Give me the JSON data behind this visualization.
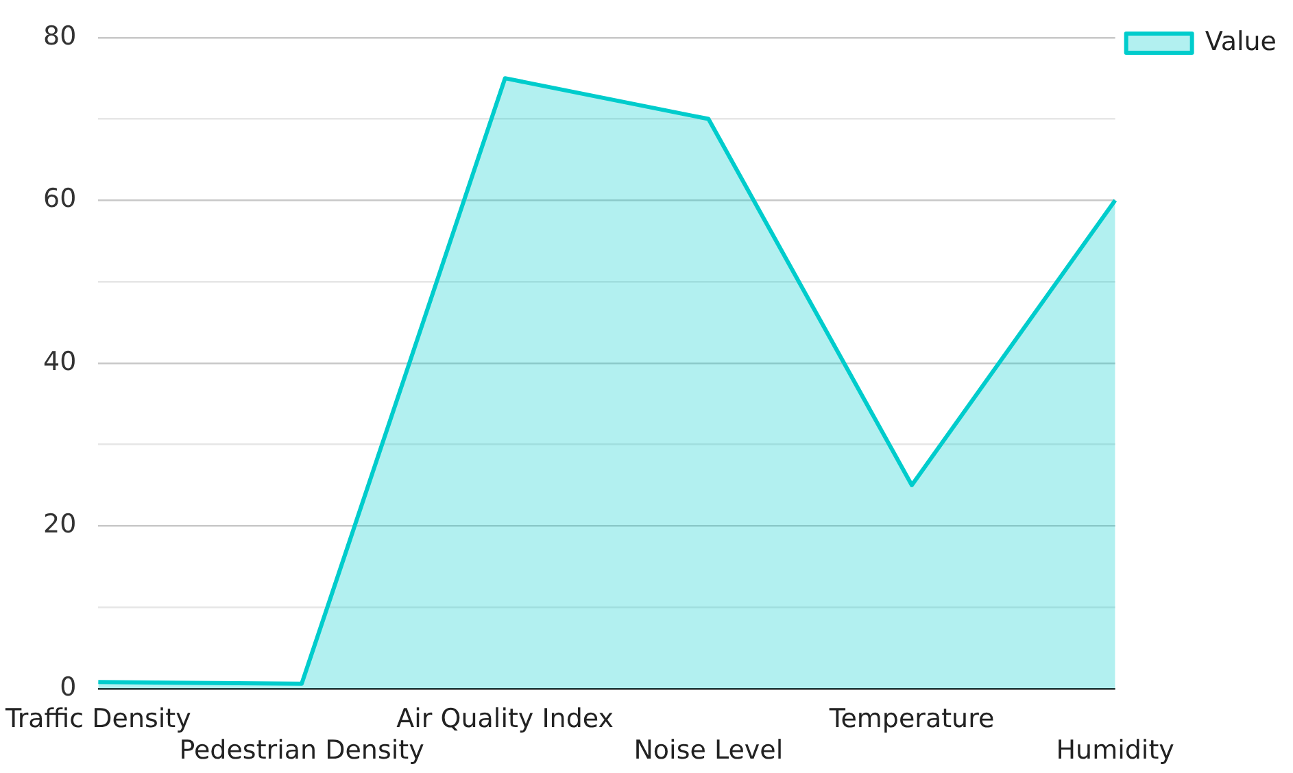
{
  "chart_data": {
    "type": "area",
    "categories": [
      "Traffic Density",
      "Pedestrian Density",
      "Air Quality Index",
      "Noise Level",
      "Temperature",
      "Humidity"
    ],
    "series": [
      {
        "name": "Value",
        "color": "#00cccc",
        "values": [
          0.8,
          0.6,
          75,
          70,
          25,
          60
        ]
      }
    ],
    "ylim": [
      0,
      80
    ],
    "yticks": [
      0,
      {
        "value": 10,
        "label": null
      },
      20,
      {
        "value": 30,
        "label": null
      },
      40,
      {
        "value": 50,
        "label": null
      },
      60,
      {
        "value": 70,
        "label": null
      },
      80
    ],
    "grid": "y",
    "legend": "top right",
    "marker": "none",
    "line_style": "solid"
  }
}
